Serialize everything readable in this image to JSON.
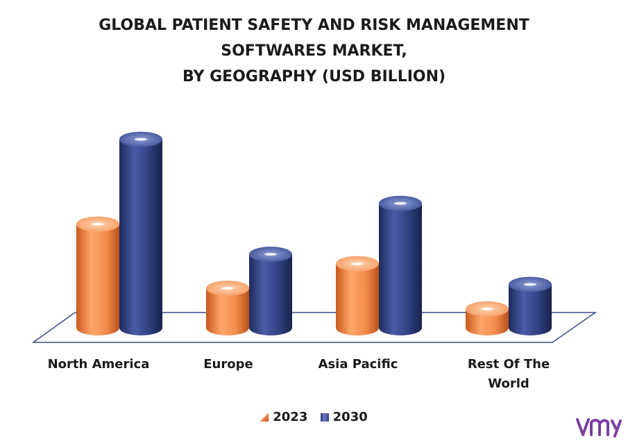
{
  "chart_data": {
    "type": "bar",
    "title_lines": [
      "GLOBAL PATIENT SAFETY AND RISK MANAGEMENT",
      "SOFTWARES MARKET,",
      "BY GEOGRAPHY (USD BILLION)"
    ],
    "categories": [
      "North America",
      "Europe",
      "Asia Pacific",
      "Rest Of The World"
    ],
    "category_lines": [
      [
        "North America"
      ],
      [
        "Europe"
      ],
      [
        "Asia Pacific"
      ],
      [
        "Rest Of The",
        "World"
      ]
    ],
    "series": [
      {
        "name": "2023",
        "values": [
          5.5,
          2.1,
          3.4,
          1.0
        ],
        "color": "#f28b4c"
      },
      {
        "name": "2030",
        "values": [
          10.0,
          3.9,
          6.6,
          2.3
        ],
        "color": "#2f3f7f"
      }
    ],
    "ylim": [
      0,
      10.5
    ],
    "xlabel": "",
    "ylabel": "",
    "legend_position": "bottom",
    "grid": false
  },
  "legend": {
    "items": [
      "2023",
      "2030"
    ]
  },
  "colors": {
    "orange": "#f28b4c",
    "navy": "#2f3f7f",
    "floor_line": "#3a4a8a",
    "logo": "#7b3fa0"
  }
}
